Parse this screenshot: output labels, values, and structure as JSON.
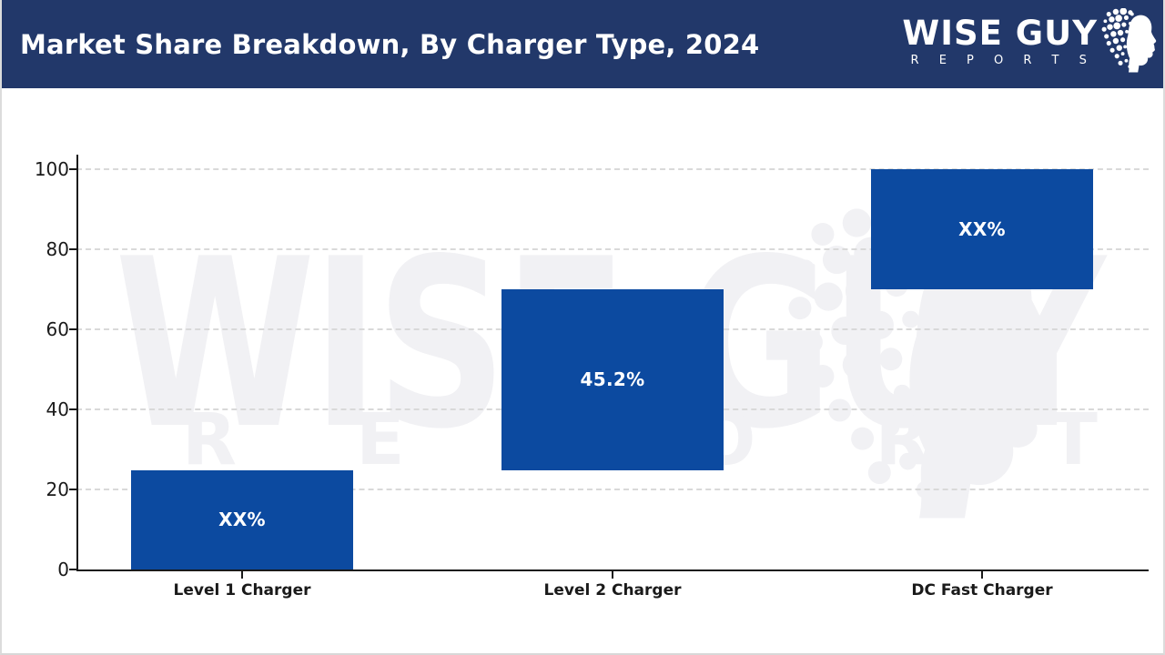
{
  "header": {
    "title": "Market Share Breakdown, By Charger Type, 2024",
    "logo": {
      "wordmark": "WISE GUY",
      "subtext": "R E P O R T S"
    }
  },
  "watermark": {
    "line1": "WISE GUY",
    "line2": "R E P O R T S"
  },
  "colors": {
    "header_bg": "#22386a",
    "title_text": "#ffffff",
    "bar": "#0c4aa0",
    "bar_label": "#ffffff",
    "grid": "#d9d9d9",
    "axis": "#1a1a1a",
    "watermark": "#f1f1f4"
  },
  "chart_data": {
    "type": "bar",
    "subtype": "floating-waterfall",
    "title": "Market Share Breakdown, By Charger Type, 2024",
    "categories": [
      "Level 1 Charger",
      "Level 2 Charger",
      "DC Fast Charger"
    ],
    "segments": [
      {
        "category": "Level 1 Charger",
        "start": 0,
        "end": 24.8,
        "label": "XX%"
      },
      {
        "category": "Level 2 Charger",
        "start": 24.8,
        "end": 70,
        "label": "45.2%"
      },
      {
        "category": "DC Fast Charger",
        "start": 70,
        "end": 100,
        "label": "XX%"
      }
    ],
    "ylim": [
      0,
      100
    ],
    "yticks": [
      0,
      20,
      40,
      60,
      80,
      100
    ],
    "xlabel": "",
    "ylabel": "",
    "grid": "dashed-horizontal",
    "legend": "none"
  }
}
